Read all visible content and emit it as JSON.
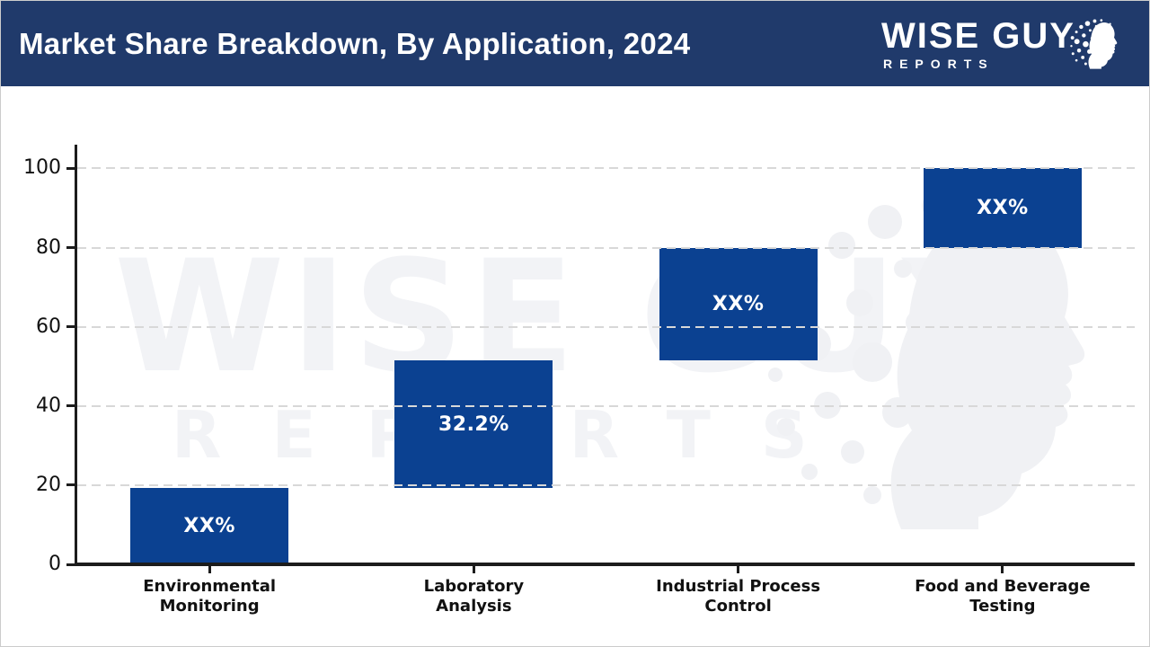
{
  "header": {
    "title": "Market Share Breakdown, By Application, 2024",
    "brand_line1": "WISE GUY",
    "brand_line2": "REPORTS"
  },
  "watermark": {
    "line1": "WISE GUY",
    "line2": "REPORTS"
  },
  "colors": {
    "header_bg": "#203a6b",
    "bar_blue": "#0b4191",
    "gridline_gray": "#d8d8d8",
    "watermark_gray": "#f2f3f6",
    "axis_black": "#1c1c1c",
    "text_white": "#ffffff"
  },
  "chart_data": {
    "type": "bar",
    "subtype": "floating-waterfall",
    "title": "Market Share Breakdown, By Application, 2024",
    "xlabel": "",
    "ylabel": "",
    "ylim": [
      0,
      106
    ],
    "yticks": [
      0,
      20,
      40,
      60,
      80,
      100
    ],
    "grid": "dashed-horizontal",
    "legend": "none",
    "categories": [
      "Environmental Monitoring",
      "Laboratory Analysis",
      "Industrial Process Control",
      "Food and Beverage Testing"
    ],
    "bars": [
      {
        "category": "Environmental Monitoring",
        "category_lines": [
          "Environmental",
          "Monitoring"
        ],
        "start": 0,
        "end": 19.3,
        "value_label": "XX%"
      },
      {
        "category": "Laboratory Analysis",
        "category_lines": [
          "Laboratory",
          "Analysis"
        ],
        "start": 19.3,
        "end": 51.5,
        "value_label": "32.2%"
      },
      {
        "category": "Industrial Process Control",
        "category_lines": [
          "Industrial Process",
          "Control"
        ],
        "start": 51.5,
        "end": 80,
        "value_label": "XX%"
      },
      {
        "category": "Food and Beverage Testing",
        "category_lines": [
          "Food and Beverage",
          "Testing"
        ],
        "start": 80,
        "end": 100,
        "value_label": "XX%"
      }
    ]
  }
}
